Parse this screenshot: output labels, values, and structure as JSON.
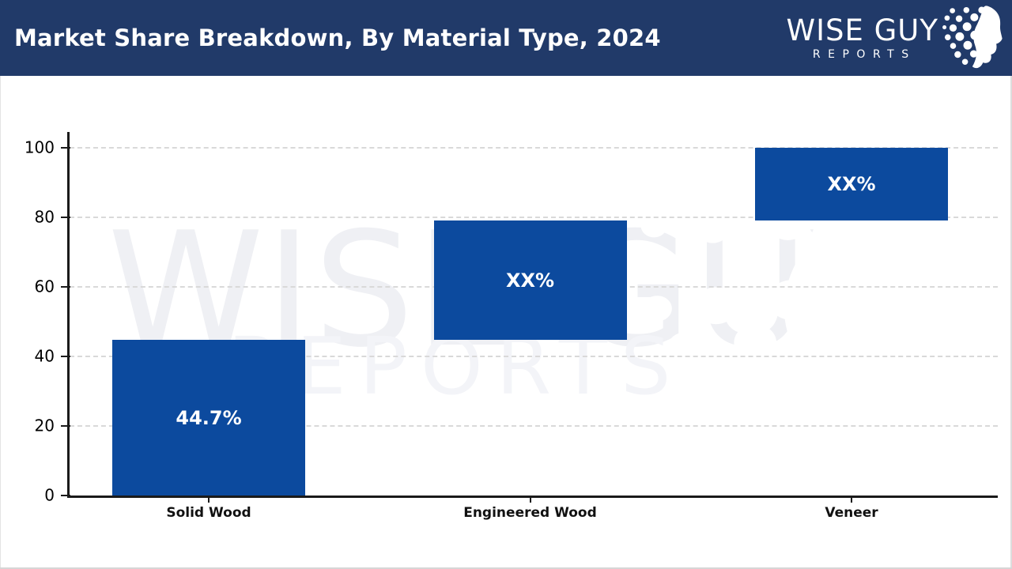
{
  "header": {
    "title": "Market Share Breakdown, By Material Type, 2024",
    "bg_color": "#213a69",
    "logo": {
      "wordmark": "WISE GUY",
      "subtext": "REPORTS"
    }
  },
  "watermark": {
    "wordmark": "WISE GUY",
    "subtext": "REPORTS"
  },
  "chart_data": {
    "type": "bar",
    "variant": "waterfall",
    "title": "Market Share Breakdown, By Material Type, 2024",
    "categories": [
      "Solid Wood",
      "Engineered Wood",
      "Veneer"
    ],
    "series": [
      {
        "name": "Market share (%)",
        "segments": [
          {
            "category": "Solid Wood",
            "start": 0,
            "end": 44.7,
            "label": "44.7%"
          },
          {
            "category": "Engineered Wood",
            "start": 44.7,
            "end": 79.1,
            "label": "XX%"
          },
          {
            "category": "Veneer",
            "start": 79.1,
            "end": 100,
            "label": "XX%"
          }
        ]
      }
    ],
    "xlabel": "",
    "ylabel": "",
    "yticks": [
      0,
      20,
      40,
      60,
      80,
      100
    ],
    "ylim": [
      0,
      104.5
    ],
    "grid": "horizontal-dashed",
    "gridline_color": "#d9d9d9",
    "legend": "none",
    "bar_color": "#0c4a9e",
    "bar_label_color": "#ffffff"
  }
}
